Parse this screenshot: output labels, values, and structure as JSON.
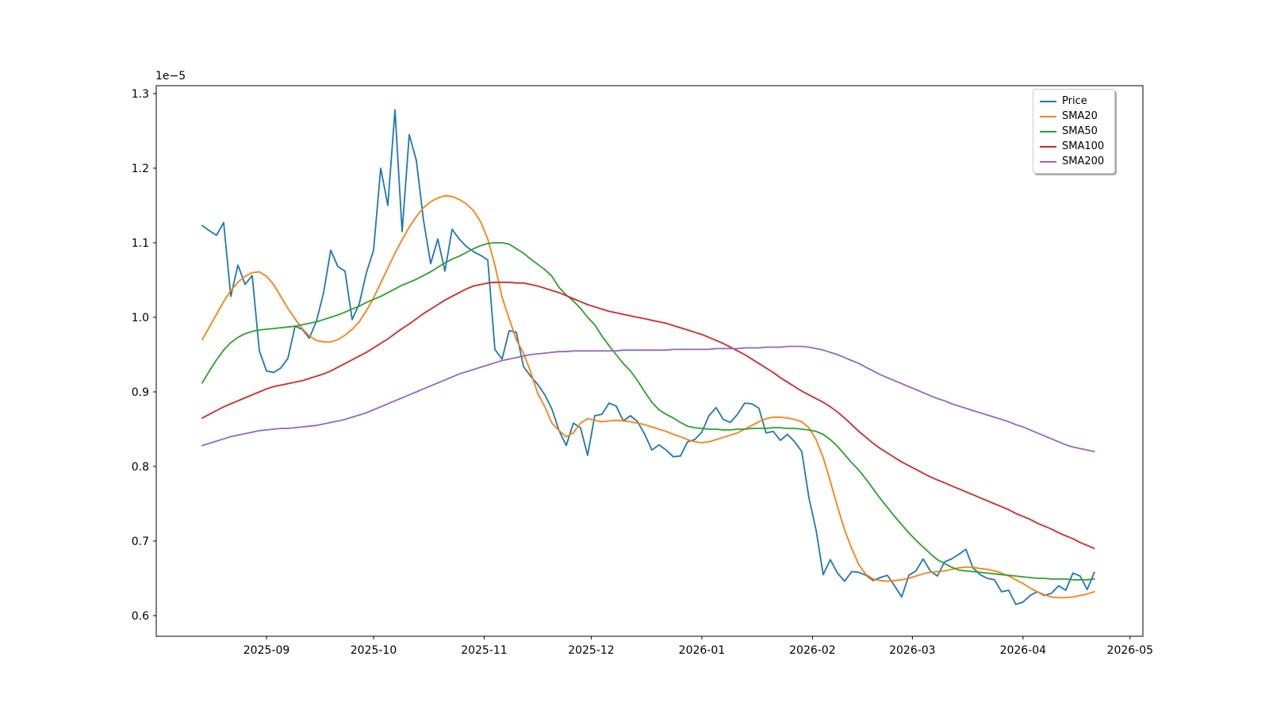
{
  "figure": {
    "background": "#ffffff",
    "offset_text": "1e−5"
  },
  "chart_data": {
    "type": "line",
    "title": "",
    "xlabel": "",
    "ylabel": "",
    "grid": false,
    "legend_position": "upper right",
    "unit_multiplier": "1e-5",
    "offset_text": "1e−5",
    "x_start_date": "2025-08-14",
    "x_step_days": 2,
    "xlim_days": [
      -12.9,
      263.6
    ],
    "ylim": [
      0.5723,
      1.3106
    ],
    "x_ticks": [
      {
        "day": 18,
        "label": "2025-09"
      },
      {
        "day": 48,
        "label": "2025-10"
      },
      {
        "day": 79,
        "label": "2025-11"
      },
      {
        "day": 109,
        "label": "2025-12"
      },
      {
        "day": 140,
        "label": "2026-01"
      },
      {
        "day": 171,
        "label": "2026-02"
      },
      {
        "day": 199,
        "label": "2026-03"
      },
      {
        "day": 230,
        "label": "2026-04"
      },
      {
        "day": 260,
        "label": "2026-05"
      }
    ],
    "y_ticks": [
      0.6,
      0.7,
      0.8,
      0.9,
      1.0,
      1.1,
      1.2,
      1.3
    ],
    "series": [
      {
        "name": "Price",
        "color": "#1f77b4",
        "values": [
          1.123,
          1.116,
          1.11,
          1.127,
          1.028,
          1.07,
          1.044,
          1.056,
          0.955,
          0.928,
          0.926,
          0.932,
          0.945,
          0.988,
          0.984,
          0.972,
          0.995,
          1.033,
          1.09,
          1.068,
          1.062,
          0.997,
          1.018,
          1.06,
          1.09,
          1.2,
          1.15,
          1.278,
          1.115,
          1.245,
          1.21,
          1.13,
          1.072,
          1.105,
          1.062,
          1.118,
          1.105,
          1.095,
          1.088,
          1.083,
          1.077,
          0.957,
          0.944,
          0.982,
          0.98,
          0.934,
          0.921,
          0.91,
          0.896,
          0.877,
          0.848,
          0.828,
          0.858,
          0.852,
          0.815,
          0.868,
          0.87,
          0.885,
          0.881,
          0.861,
          0.868,
          0.86,
          0.843,
          0.822,
          0.829,
          0.822,
          0.813,
          0.814,
          0.833,
          0.836,
          0.846,
          0.868,
          0.879,
          0.863,
          0.859,
          0.87,
          0.885,
          0.884,
          0.878,
          0.845,
          0.847,
          0.835,
          0.843,
          0.833,
          0.82,
          0.758,
          0.715,
          0.655,
          0.675,
          0.657,
          0.646,
          0.659,
          0.658,
          0.654,
          0.647,
          0.651,
          0.654,
          0.64,
          0.625,
          0.654,
          0.66,
          0.676,
          0.66,
          0.653,
          0.672,
          0.676,
          0.682,
          0.689,
          0.664,
          0.655,
          0.65,
          0.648,
          0.632,
          0.634,
          0.615,
          0.618,
          0.627,
          0.632,
          0.627,
          0.63,
          0.64,
          0.634,
          0.657,
          0.653,
          0.635,
          0.658
        ]
      },
      {
        "name": "SMA20",
        "color": "#ff7f0e",
        "values": [
          0.97,
          0.987,
          1.004,
          1.021,
          1.036,
          1.047,
          1.055,
          1.06,
          1.061,
          1.055,
          1.044,
          1.028,
          1.012,
          0.998,
          0.985,
          0.975,
          0.969,
          0.967,
          0.967,
          0.97,
          0.976,
          0.984,
          0.994,
          1.009,
          1.026,
          1.046,
          1.066,
          1.086,
          1.104,
          1.121,
          1.135,
          1.147,
          1.155,
          1.16,
          1.163,
          1.162,
          1.158,
          1.152,
          1.143,
          1.128,
          1.105,
          1.07,
          1.027,
          0.998,
          0.97,
          0.952,
          0.927,
          0.898,
          0.88,
          0.858,
          0.848,
          0.84,
          0.845,
          0.858,
          0.864,
          0.862,
          0.86,
          0.861,
          0.862,
          0.861,
          0.86,
          0.858,
          0.856,
          0.853,
          0.85,
          0.847,
          0.843,
          0.84,
          0.836,
          0.833,
          0.832,
          0.833,
          0.836,
          0.839,
          0.842,
          0.845,
          0.85,
          0.855,
          0.86,
          0.864,
          0.866,
          0.866,
          0.865,
          0.863,
          0.86,
          0.852,
          0.836,
          0.812,
          0.78,
          0.746,
          0.715,
          0.69,
          0.668,
          0.655,
          0.649,
          0.647,
          0.646,
          0.647,
          0.648,
          0.65,
          0.653,
          0.656,
          0.658,
          0.659,
          0.66,
          0.662,
          0.664,
          0.665,
          0.665,
          0.663,
          0.662,
          0.66,
          0.657,
          0.653,
          0.648,
          0.643,
          0.637,
          0.632,
          0.628,
          0.625,
          0.624,
          0.624,
          0.625,
          0.627,
          0.629,
          0.632
        ]
      },
      {
        "name": "SMA50",
        "color": "#2ca02c",
        "values": [
          0.912,
          0.928,
          0.943,
          0.956,
          0.966,
          0.973,
          0.978,
          0.981,
          0.983,
          0.984,
          0.985,
          0.986,
          0.987,
          0.988,
          0.99,
          0.992,
          0.994,
          0.997,
          1.0,
          1.003,
          1.007,
          1.011,
          1.015,
          1.02,
          1.024,
          1.028,
          1.033,
          1.038,
          1.043,
          1.047,
          1.051,
          1.056,
          1.061,
          1.067,
          1.073,
          1.078,
          1.082,
          1.087,
          1.092,
          1.096,
          1.099,
          1.1,
          1.1,
          1.098,
          1.092,
          1.086,
          1.078,
          1.071,
          1.064,
          1.055,
          1.04,
          1.03,
          1.022,
          1.012,
          1.0,
          0.99,
          0.975,
          0.962,
          0.95,
          0.938,
          0.928,
          0.915,
          0.9,
          0.886,
          0.876,
          0.87,
          0.865,
          0.859,
          0.854,
          0.852,
          0.851,
          0.85,
          0.85,
          0.849,
          0.849,
          0.85,
          0.85,
          0.851,
          0.851,
          0.851,
          0.852,
          0.852,
          0.851,
          0.851,
          0.85,
          0.849,
          0.847,
          0.843,
          0.836,
          0.827,
          0.816,
          0.805,
          0.795,
          0.783,
          0.77,
          0.757,
          0.745,
          0.733,
          0.722,
          0.711,
          0.701,
          0.692,
          0.683,
          0.675,
          0.67,
          0.665,
          0.661,
          0.66,
          0.659,
          0.658,
          0.657,
          0.656,
          0.655,
          0.654,
          0.653,
          0.652,
          0.651,
          0.65,
          0.65,
          0.649,
          0.649,
          0.649,
          0.648,
          0.648,
          0.648,
          0.649
        ]
      },
      {
        "name": "SMA100",
        "color": "#d62728",
        "values": [
          0.865,
          0.87,
          0.875,
          0.88,
          0.884,
          0.888,
          0.892,
          0.896,
          0.9,
          0.904,
          0.907,
          0.909,
          0.911,
          0.913,
          0.915,
          0.918,
          0.921,
          0.924,
          0.928,
          0.933,
          0.938,
          0.943,
          0.948,
          0.953,
          0.959,
          0.965,
          0.971,
          0.978,
          0.985,
          0.991,
          0.998,
          1.005,
          1.011,
          1.017,
          1.023,
          1.028,
          1.033,
          1.038,
          1.042,
          1.044,
          1.046,
          1.047,
          1.047,
          1.047,
          1.046,
          1.046,
          1.044,
          1.042,
          1.039,
          1.036,
          1.033,
          1.029,
          1.025,
          1.021,
          1.017,
          1.014,
          1.011,
          1.008,
          1.006,
          1.004,
          1.002,
          1.0,
          0.998,
          0.996,
          0.994,
          0.992,
          0.989,
          0.986,
          0.983,
          0.98,
          0.977,
          0.973,
          0.969,
          0.965,
          0.96,
          0.955,
          0.95,
          0.944,
          0.938,
          0.932,
          0.926,
          0.919,
          0.913,
          0.907,
          0.901,
          0.896,
          0.891,
          0.886,
          0.88,
          0.873,
          0.865,
          0.856,
          0.847,
          0.839,
          0.831,
          0.824,
          0.818,
          0.812,
          0.806,
          0.801,
          0.796,
          0.791,
          0.786,
          0.782,
          0.778,
          0.774,
          0.77,
          0.766,
          0.762,
          0.758,
          0.754,
          0.75,
          0.746,
          0.742,
          0.737,
          0.733,
          0.729,
          0.724,
          0.72,
          0.716,
          0.711,
          0.707,
          0.703,
          0.698,
          0.694,
          0.69
        ]
      },
      {
        "name": "SMA200",
        "color": "#9467bd",
        "values": [
          0.828,
          0.831,
          0.834,
          0.837,
          0.84,
          0.842,
          0.844,
          0.846,
          0.848,
          0.849,
          0.85,
          0.851,
          0.851,
          0.852,
          0.853,
          0.854,
          0.855,
          0.857,
          0.859,
          0.861,
          0.863,
          0.866,
          0.869,
          0.872,
          0.876,
          0.88,
          0.884,
          0.888,
          0.892,
          0.896,
          0.9,
          0.904,
          0.908,
          0.912,
          0.916,
          0.92,
          0.924,
          0.927,
          0.93,
          0.933,
          0.936,
          0.939,
          0.942,
          0.944,
          0.946,
          0.948,
          0.95,
          0.951,
          0.952,
          0.953,
          0.954,
          0.954,
          0.955,
          0.955,
          0.955,
          0.955,
          0.955,
          0.955,
          0.955,
          0.956,
          0.956,
          0.956,
          0.956,
          0.956,
          0.956,
          0.956,
          0.957,
          0.957,
          0.957,
          0.957,
          0.957,
          0.957,
          0.958,
          0.958,
          0.958,
          0.958,
          0.959,
          0.959,
          0.959,
          0.96,
          0.96,
          0.96,
          0.961,
          0.961,
          0.961,
          0.96,
          0.958,
          0.956,
          0.953,
          0.95,
          0.946,
          0.942,
          0.938,
          0.933,
          0.928,
          0.923,
          0.919,
          0.915,
          0.911,
          0.907,
          0.903,
          0.899,
          0.895,
          0.891,
          0.888,
          0.884,
          0.881,
          0.878,
          0.875,
          0.872,
          0.869,
          0.866,
          0.863,
          0.86,
          0.856,
          0.853,
          0.849,
          0.845,
          0.841,
          0.837,
          0.833,
          0.829,
          0.826,
          0.824,
          0.822,
          0.82
        ]
      }
    ]
  }
}
